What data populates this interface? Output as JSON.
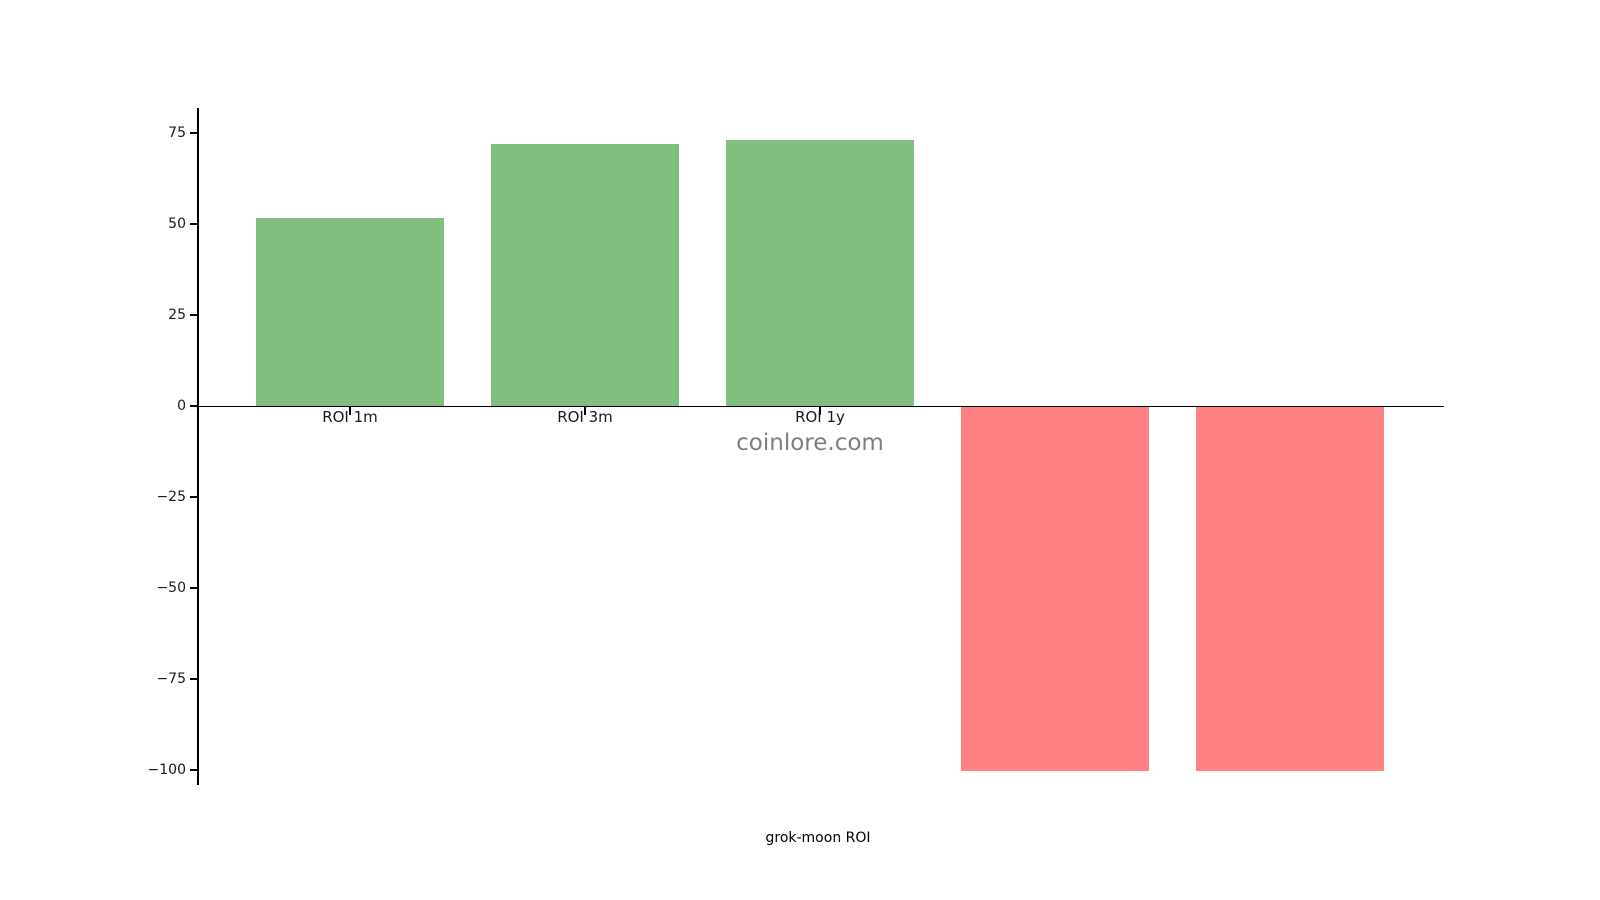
{
  "watermark": "coinlore.com",
  "chart_data": {
    "type": "bar",
    "title": "",
    "xlabel": "grok-moon ROI",
    "ylabel": "",
    "categories": [
      "ROI 1m",
      "ROI 3m",
      "ROI 1y",
      "",
      ""
    ],
    "values": [
      51.6,
      71.9,
      73.2,
      -100,
      -100
    ],
    "yticks": [
      75,
      50,
      25,
      0,
      -25,
      -50,
      -75,
      -100
    ],
    "ytick_labels": [
      "75",
      "50",
      "25",
      "0",
      "−25",
      "−50",
      "−75",
      "−100"
    ],
    "ylim": [
      -109,
      82
    ],
    "grid": false,
    "legend": false,
    "positive_color": "#80bf80",
    "negative_color": "#ff8080",
    "axis_color": "#000000",
    "watermark_color": "#7f7f7f"
  }
}
